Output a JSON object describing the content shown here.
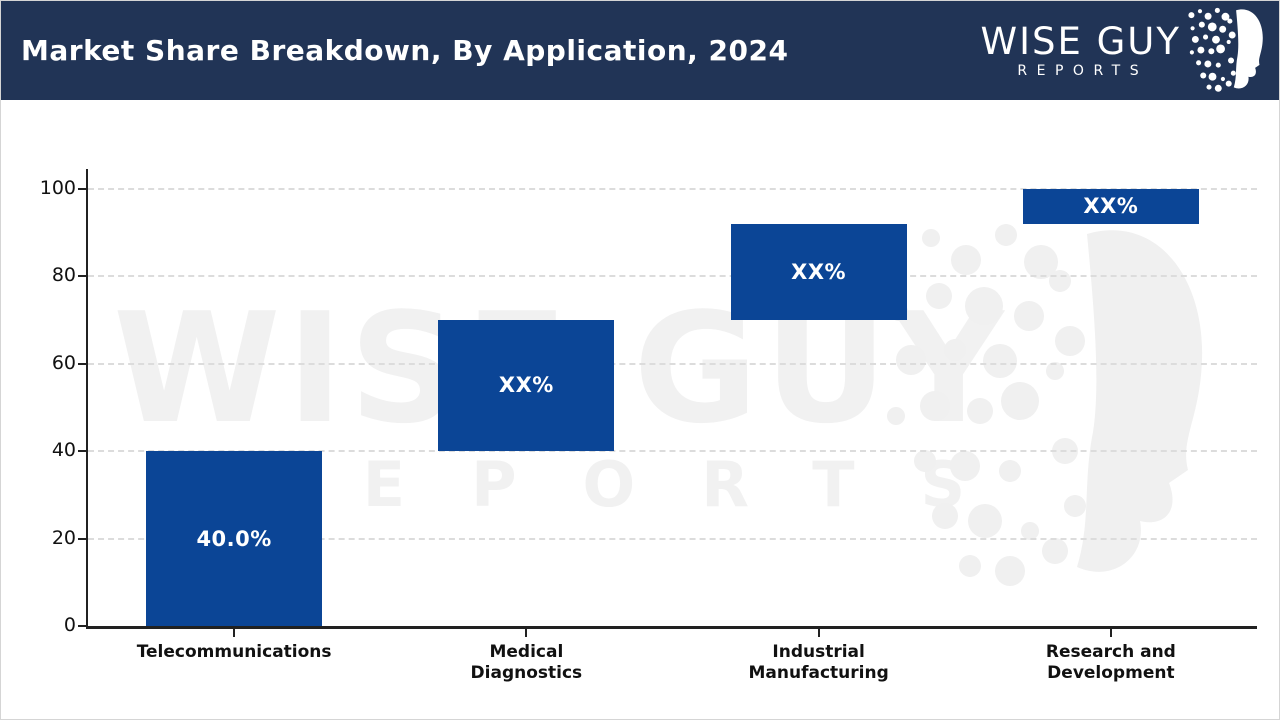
{
  "header": {
    "title": "Market Share Breakdown, By Application, 2024",
    "logo": {
      "wordmark": "WISE GUY",
      "subtitle": "REPORTS"
    }
  },
  "watermark": {
    "wordmark": "WISE GUY",
    "subtitle": "REPORTS"
  },
  "chart_data": {
    "type": "bar",
    "variant": "waterfall",
    "title": "Market Share Breakdown, By Application, 2024",
    "xlabel": "",
    "ylabel": "",
    "ylim": [
      0,
      100
    ],
    "yticks": [
      0,
      20,
      40,
      60,
      80,
      100
    ],
    "grid": "horizontal-dashed",
    "legend": "none",
    "bar_color": "#0b4596",
    "bar_label_color": "#ffffff",
    "categories": [
      {
        "lines": [
          "Telecommunications"
        ]
      },
      {
        "lines": [
          "Medical",
          "Diagnostics"
        ]
      },
      {
        "lines": [
          "Industrial",
          "Manufacturing"
        ]
      },
      {
        "lines": [
          "Research and",
          "Development"
        ]
      }
    ],
    "segments": [
      {
        "name": "Telecommunications",
        "start": 0,
        "end": 40,
        "label": "40.0%"
      },
      {
        "name": "Medical Diagnostics",
        "start": 40,
        "end": 70,
        "label": "XX%"
      },
      {
        "name": "Industrial Manufacturing",
        "start": 70,
        "end": 92,
        "label": "XX%"
      },
      {
        "name": "Research and Development",
        "start": 92,
        "end": 100,
        "label": "XX%"
      }
    ]
  }
}
